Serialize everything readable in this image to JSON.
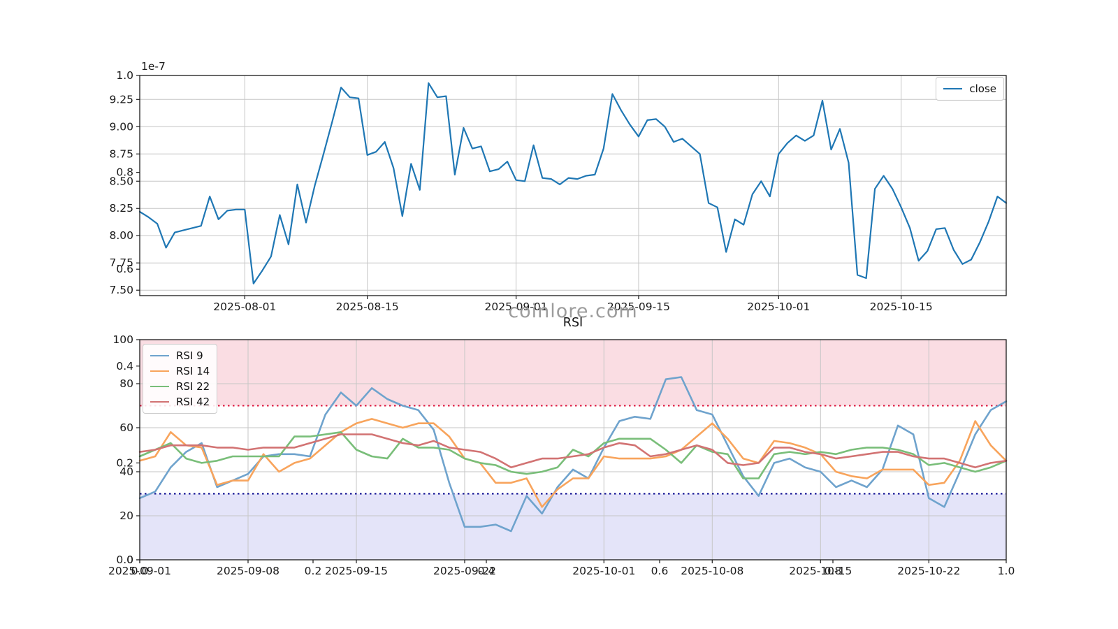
{
  "watermark": "coinlore.com",
  "colors": {
    "close_line": "#1f77b4",
    "rsi9": "#6fa3cd",
    "rsi14": "#f8a45c",
    "rsi22": "#79be79",
    "rsi42": "#d27373",
    "overbought_line": "#dc143c",
    "oversold_line": "#00008b",
    "overbought_band": "#fadde3",
    "oversold_band": "#e4e4f9",
    "grid": "#c6c6c6",
    "spine": "#1a1a1a",
    "tick_text": "#1a1a1a",
    "watermark_text": "#9c9c9c"
  },
  "overlay_axis": {
    "x_tick_labels": [
      "0.0",
      "0.2",
      "0.4",
      "0.6",
      "0.8",
      "1.0"
    ],
    "y_tick_labels": [
      "0.0",
      "0.2",
      "0.4",
      "0.6",
      "0.8",
      "1.0"
    ],
    "fractions": [
      0,
      0.2,
      0.4,
      0.6,
      0.8,
      1.0
    ]
  },
  "chart_data": [
    {
      "id": "price",
      "type": "line",
      "title": "",
      "legend_position": "upper right",
      "legend": [
        {
          "label": "close",
          "color": "#1f77b4"
        }
      ],
      "x_start_date": "2025-07-20",
      "x_end_date": "2025-10-27",
      "x_frequency": "daily",
      "x_tick_labels": [
        "2025-08-01",
        "2025-08-15",
        "2025-09-01",
        "2025-09-15",
        "2025-10-01",
        "2025-10-15"
      ],
      "x_tick_day_index": [
        12,
        26,
        43,
        57,
        73,
        87
      ],
      "y_offset_label": "1e-7",
      "unit_multiplier": 1e-07,
      "ylim": [
        7.45,
        9.47
      ],
      "y_ticks": [
        7.5,
        7.75,
        8.0,
        8.25,
        8.5,
        8.75,
        9.0,
        9.25
      ],
      "y_tick_labels": [
        "7.50",
        "7.75",
        "8.00",
        "8.25",
        "8.50",
        "8.75",
        "9.00",
        "9.25"
      ],
      "grid": true,
      "series": [
        {
          "name": "close",
          "color": "#1f77b4",
          "values": [
            8.22,
            8.17,
            8.11,
            7.89,
            8.03,
            8.05,
            8.07,
            8.09,
            8.36,
            8.15,
            8.23,
            8.24,
            8.24,
            7.56,
            7.68,
            7.81,
            8.19,
            7.92,
            8.47,
            8.12,
            8.46,
            8.75,
            9.05,
            9.36,
            9.27,
            9.26,
            8.74,
            8.77,
            8.86,
            8.62,
            8.18,
            8.66,
            8.42,
            9.4,
            9.27,
            9.28,
            8.56,
            8.99,
            8.8,
            8.82,
            8.59,
            8.61,
            8.68,
            8.51,
            8.5,
            8.83,
            8.53,
            8.52,
            8.47,
            8.53,
            8.52,
            8.55,
            8.56,
            8.8,
            9.3,
            9.15,
            9.02,
            8.91,
            9.06,
            9.07,
            9.0,
            8.86,
            8.89,
            8.82,
            8.75,
            8.3,
            8.26,
            7.85,
            8.15,
            8.1,
            8.38,
            8.5,
            8.36,
            8.75,
            8.85,
            8.92,
            8.87,
            8.92,
            9.24,
            8.79,
            8.98,
            8.67,
            7.64,
            7.61,
            8.43,
            8.55,
            8.43,
            8.26,
            8.07,
            7.77,
            7.86,
            8.06,
            8.07,
            7.87,
            7.74,
            7.78,
            7.94,
            8.13,
            8.36,
            8.3
          ]
        }
      ]
    },
    {
      "id": "rsi",
      "type": "line",
      "title": "RSI",
      "legend_position": "upper left",
      "legend": [
        {
          "label": "RSI 9",
          "color": "#6fa3cd"
        },
        {
          "label": "RSI 14",
          "color": "#f8a45c"
        },
        {
          "label": "RSI 22",
          "color": "#79be79"
        },
        {
          "label": "RSI 42",
          "color": "#d27373"
        }
      ],
      "x_start_date": "2025-09-01",
      "x_end_date": "2025-10-27",
      "x_frequency": "daily",
      "x_tick_labels": [
        "2025-09-01",
        "2025-09-08",
        "2025-09-15",
        "2025-09-22",
        "2025-10-01",
        "2025-10-08",
        "2025-10-15",
        "2025-10-22"
      ],
      "x_tick_day_index": [
        0,
        7,
        14,
        21,
        30,
        37,
        44,
        51
      ],
      "ylim": [
        0,
        100
      ],
      "y_ticks": [
        0,
        20,
        40,
        60,
        80,
        100
      ],
      "y_tick_labels": [
        "0",
        "20",
        "40",
        "60",
        "80",
        "100"
      ],
      "grid": true,
      "hlines": [
        {
          "y": 70,
          "color": "#dc143c",
          "style": "dotted",
          "name": "overbought-line"
        },
        {
          "y": 30,
          "color": "#00008b",
          "style": "dotted",
          "name": "oversold-line"
        }
      ],
      "bands": [
        {
          "from": 70,
          "to": 100,
          "color": "#fadde3",
          "name": "overbought-band"
        },
        {
          "from": 0,
          "to": 30,
          "color": "#e4e4f9",
          "name": "oversold-band"
        }
      ],
      "series": [
        {
          "name": "RSI 9",
          "color": "#6fa3cd",
          "values": [
            28,
            31,
            42,
            49,
            53,
            33,
            36,
            39,
            47,
            48,
            48,
            47,
            66,
            76,
            70,
            78,
            73,
            70,
            68,
            59,
            35,
            15,
            15,
            16,
            13,
            29,
            21,
            33,
            41,
            37,
            51,
            63,
            65,
            64,
            82,
            83,
            68,
            66,
            52,
            38,
            29,
            44,
            46,
            42,
            40,
            33,
            36,
            33,
            41,
            61,
            57,
            28,
            24,
            40,
            57,
            68,
            72
          ]
        },
        {
          "name": "RSI 14",
          "color": "#f8a45c",
          "values": [
            45,
            47,
            58,
            52,
            51,
            34,
            36,
            36,
            48,
            40,
            44,
            46,
            52,
            58,
            62,
            64,
            62,
            60,
            62,
            62,
            56,
            46,
            44,
            35,
            35,
            37,
            24,
            32,
            37,
            37,
            47,
            46,
            46,
            46,
            47,
            50,
            56,
            62,
            55,
            46,
            44,
            54,
            53,
            51,
            48,
            40,
            38,
            37,
            41,
            41,
            41,
            34,
            35,
            45,
            63,
            52,
            45
          ]
        },
        {
          "name": "RSI 22",
          "color": "#79be79",
          "values": [
            47,
            50,
            53,
            46,
            44,
            45,
            47,
            47,
            47,
            47,
            56,
            56,
            57,
            58,
            50,
            47,
            46,
            55,
            51,
            51,
            50,
            46,
            44,
            43,
            40,
            39,
            40,
            42,
            50,
            47,
            53,
            55,
            55,
            55,
            50,
            44,
            52,
            49,
            48,
            37,
            37,
            48,
            49,
            48,
            49,
            48,
            50,
            51,
            51,
            50,
            48,
            43,
            44,
            42,
            40,
            42,
            45
          ]
        },
        {
          "name": "RSI 42",
          "color": "#d27373",
          "values": [
            49,
            50,
            52,
            52,
            52,
            51,
            51,
            50,
            51,
            51,
            51,
            53,
            55,
            57,
            57,
            57,
            55,
            53,
            52,
            54,
            51,
            50,
            49,
            46,
            42,
            44,
            46,
            46,
            47,
            48,
            51,
            53,
            52,
            47,
            48,
            50,
            52,
            50,
            44,
            43,
            44,
            51,
            51,
            49,
            48,
            46,
            47,
            48,
            49,
            49,
            47,
            46,
            46,
            44,
            42,
            44,
            45
          ]
        }
      ]
    }
  ]
}
